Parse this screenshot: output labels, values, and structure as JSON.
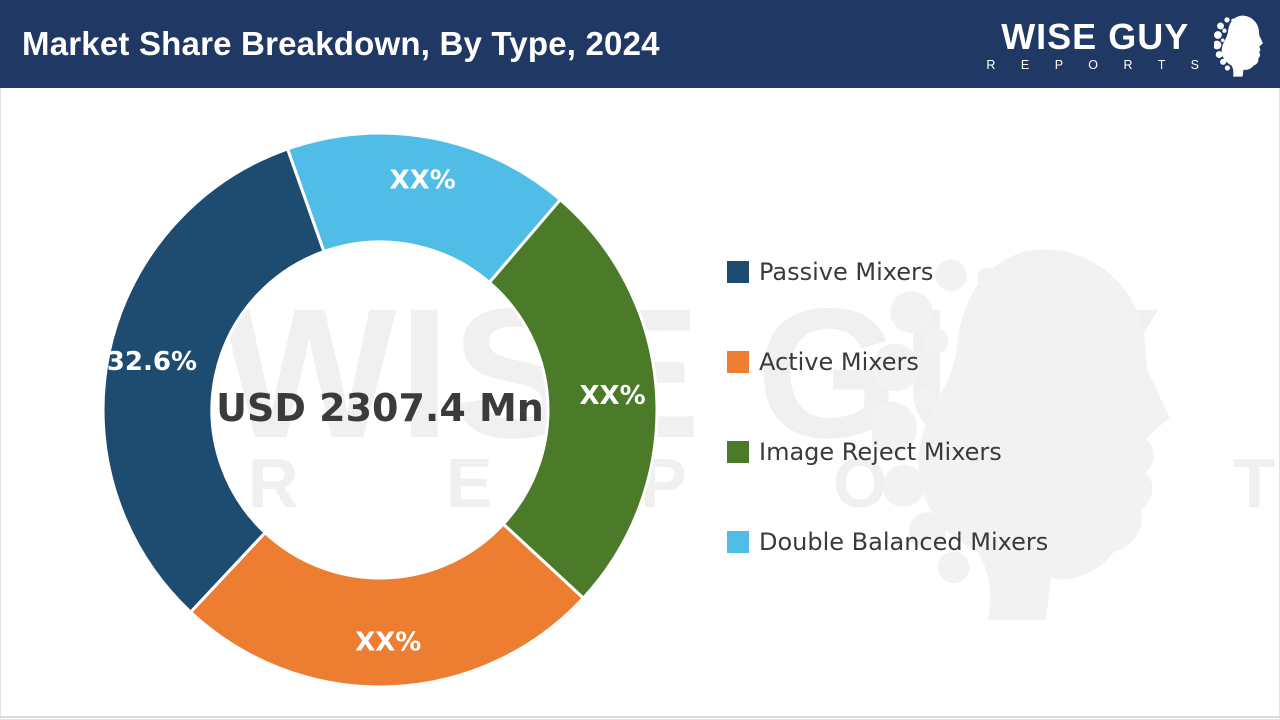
{
  "page": {
    "background": "#ffffff",
    "border_color": "#d9d9d9"
  },
  "header": {
    "background": "#203864",
    "title": "Market Share Breakdown, By Type, 2024",
    "logo": {
      "wordmark": "WISE GUY",
      "subtext": "R E P O R T S"
    }
  },
  "watermark": {
    "wordmark": "WISE GUY",
    "subtext": "R E P O R T S"
  },
  "chart_data": {
    "type": "pie",
    "subtype": "donut",
    "title": "Market Share Breakdown, By Type, 2024",
    "center_label": "USD 2307.4 Mn",
    "start_angle_deg": -19.5,
    "clockwise": true,
    "legend_position": "right",
    "segments": [
      {
        "name": "Double Balanced Mixers",
        "label": "XX%",
        "value_pct": 16.7,
        "color": "#4fbde6"
      },
      {
        "name": "Image Reject Mixers",
        "label": "XX%",
        "value_pct": 25.6,
        "color": "#4b7b29"
      },
      {
        "name": "Active Mixers",
        "label": "XX%",
        "value_pct": 25.1,
        "color": "#ed7d31"
      },
      {
        "name": "Passive Mixers",
        "label": "32.6%",
        "value_pct": 32.6,
        "color": "#1e4c70"
      }
    ],
    "note": "Only Passive Mixers share is disclosed (32.6%); other slice labels are masked as XX%, value_pct estimated from arc angles."
  }
}
